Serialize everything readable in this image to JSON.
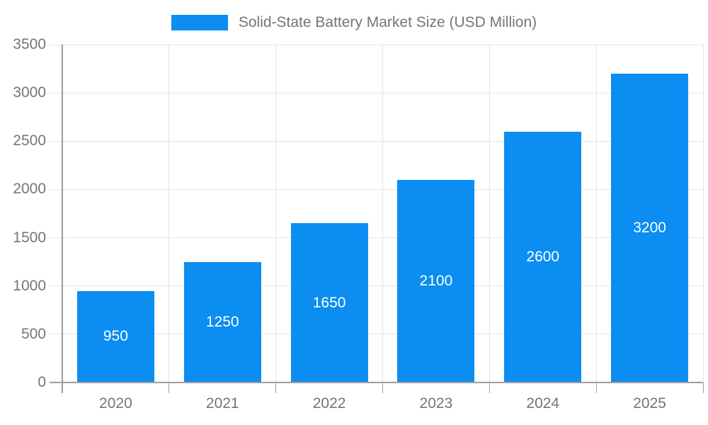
{
  "legend": {
    "label": "Solid-State Battery Market Size (USD Million)"
  },
  "colors": {
    "bar": "#0b8df2",
    "grid": "#e4e4e4",
    "axis": "#9e9e9e",
    "label_text": "#757575",
    "bar_label_text": "#ffffff",
    "background": "#ffffff"
  },
  "y_axis": {
    "tick_labels": [
      "0",
      "500",
      "1000",
      "1500",
      "2000",
      "2500",
      "3000",
      "3500"
    ]
  },
  "x_axis": {
    "tick_labels": [
      "2020",
      "2021",
      "2022",
      "2023",
      "2024",
      "2025"
    ]
  },
  "bar_value_labels": [
    "950",
    "1250",
    "1650",
    "2100",
    "2600",
    "3200"
  ],
  "chart_data": {
    "type": "bar",
    "categories": [
      "2020",
      "2021",
      "2022",
      "2023",
      "2024",
      "2025"
    ],
    "values": [
      950,
      1250,
      1650,
      2100,
      2600,
      3200
    ],
    "title": "Solid-State Battery Market Size (USD Million)",
    "xlabel": "",
    "ylabel": "",
    "ylim": [
      0,
      3500
    ],
    "ytick_step": 500,
    "grid": true,
    "legend_position": "top-center",
    "value_labels": "inside-center-white"
  }
}
